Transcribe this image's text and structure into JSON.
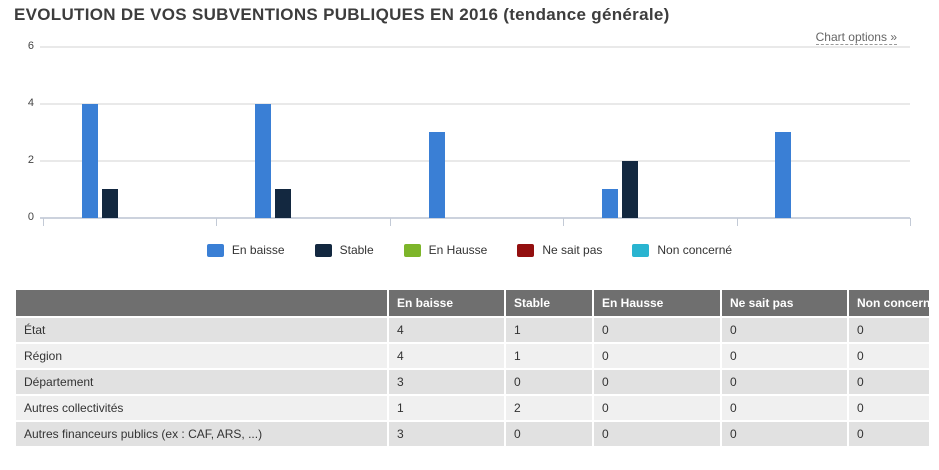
{
  "header": {
    "title": "EVOLUTION DE VOS SUBVENTIONS PUBLIQUES EN 2016 (tendance générale)",
    "chart_options_label": "Chart options »"
  },
  "chart_data": {
    "type": "bar",
    "title": "EVOLUTION DE VOS SUBVENTIONS PUBLIQUES EN 2016 (tendance générale)",
    "categories": [
      "État",
      "Région",
      "Département",
      "Autres collectivités",
      "Autres financeurs publics (ex : CAF, ARS, ...)"
    ],
    "series": [
      {
        "name": "En baisse",
        "color": "#3a7fd5",
        "values": [
          4,
          4,
          3,
          1,
          3
        ]
      },
      {
        "name": "Stable",
        "color": "#132840",
        "values": [
          1,
          1,
          0,
          2,
          0
        ]
      },
      {
        "name": "En Hausse",
        "color": "#7db52a",
        "values": [
          0,
          0,
          0,
          0,
          0
        ]
      },
      {
        "name": "Ne sait pas",
        "color": "#930f0f",
        "values": [
          0,
          0,
          0,
          0,
          0
        ]
      },
      {
        "name": "Non concerné",
        "color": "#29b4d0",
        "values": [
          0,
          0,
          0,
          0,
          0
        ]
      }
    ],
    "xlabel": "",
    "ylabel": "",
    "ylim": [
      0,
      6
    ],
    "yticks": [
      0,
      2,
      4,
      6
    ],
    "grid": true,
    "legend_position": "bottom"
  },
  "table": {
    "columns": [
      "",
      "En baisse",
      "Stable",
      "En Hausse",
      "Ne sait pas",
      "Non concerné"
    ],
    "rows": [
      {
        "label": "État",
        "values": [
          4,
          1,
          0,
          0,
          0
        ]
      },
      {
        "label": "Région",
        "values": [
          4,
          1,
          0,
          0,
          0
        ]
      },
      {
        "label": "Département",
        "values": [
          3,
          0,
          0,
          0,
          0
        ]
      },
      {
        "label": "Autres collectivités",
        "values": [
          1,
          2,
          0,
          0,
          0
        ]
      },
      {
        "label": "Autres financeurs publics (ex : CAF, ARS, ...)",
        "values": [
          3,
          0,
          0,
          0,
          0
        ]
      }
    ]
  }
}
